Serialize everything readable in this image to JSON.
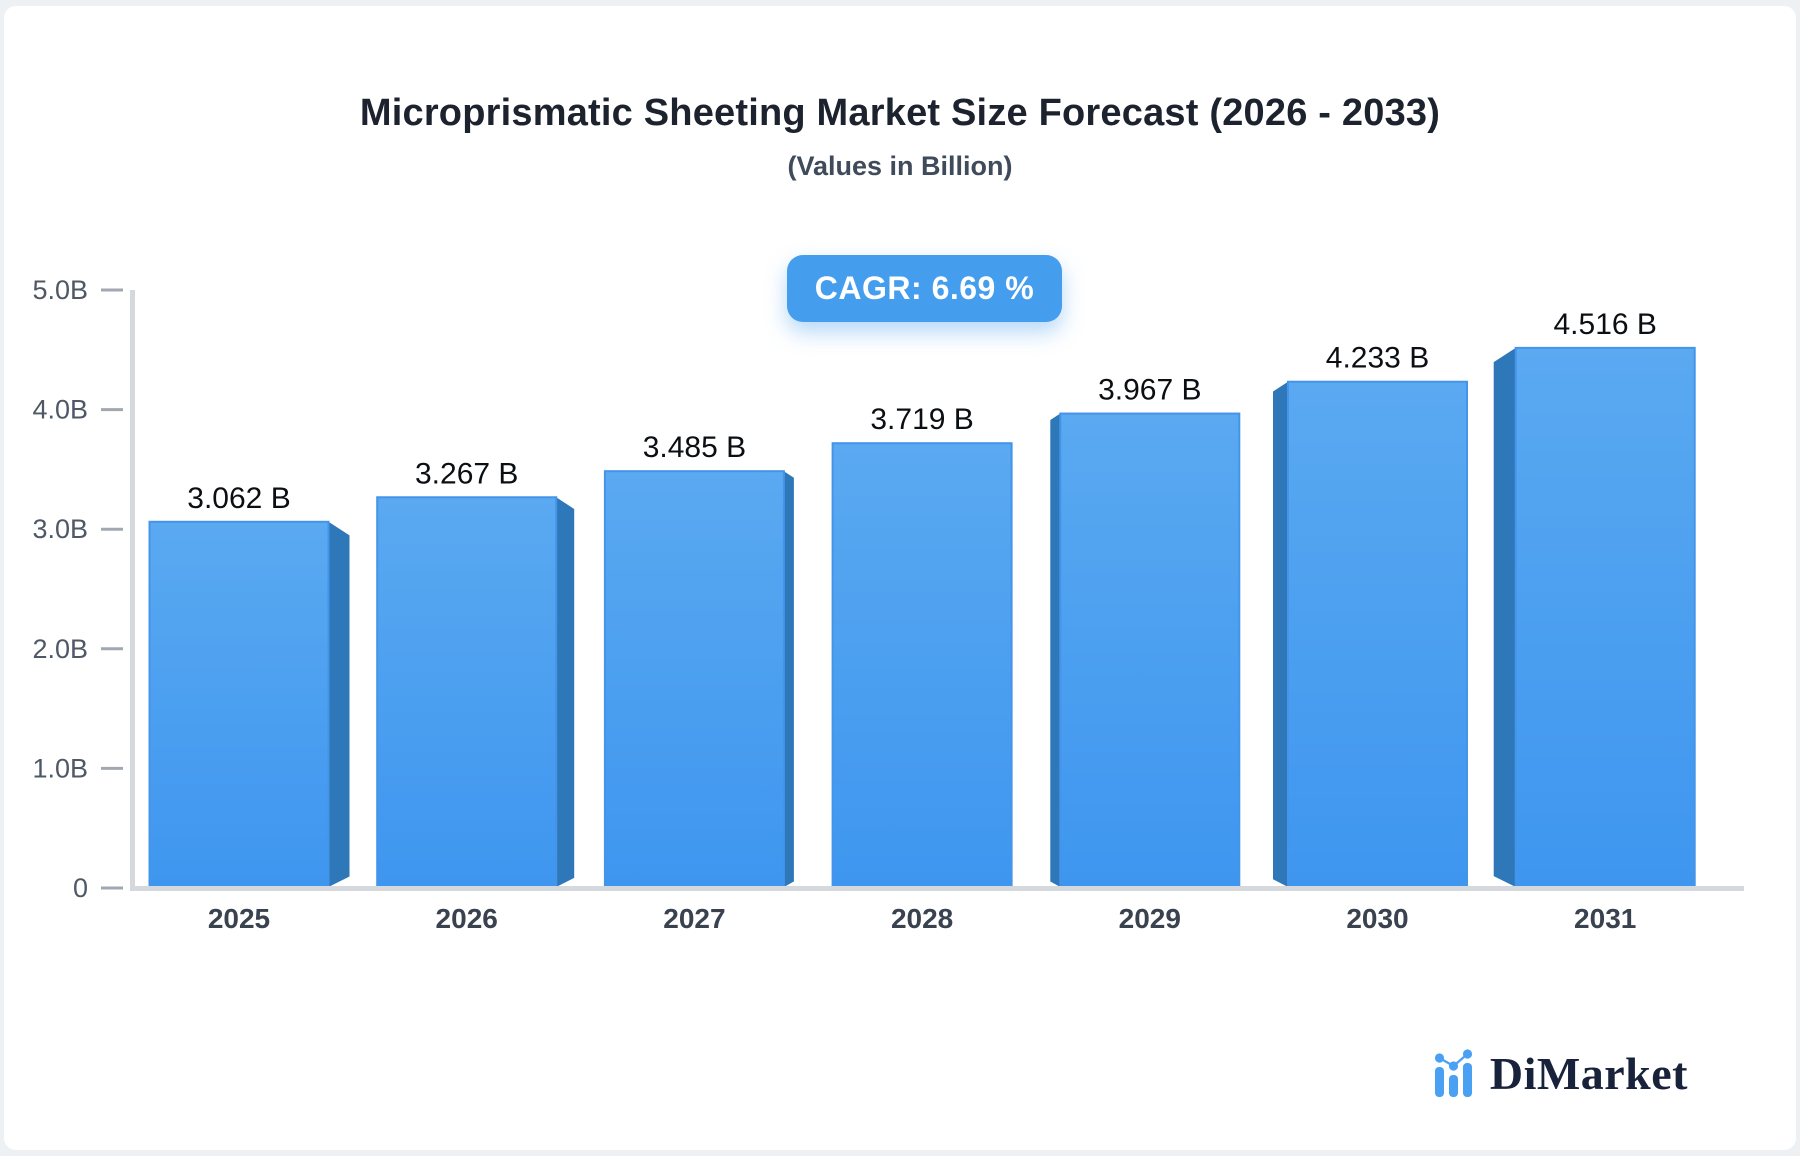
{
  "page": {
    "title": "Microprismatic Sheeting Market Size Forecast (2026 - 2033)",
    "subtitle": "(Values in Billion)",
    "cagr_badge": "CAGR: 6.69 %",
    "logo_text": "DiMarket"
  },
  "chart_data": {
    "type": "bar",
    "title": "Microprismatic Sheeting Market Size Forecast (2026 - 2033)",
    "subtitle": "(Values in Billion)",
    "cagr": "6.69 %",
    "categories": [
      "2025",
      "2026",
      "2027",
      "2028",
      "2029",
      "2030",
      "2031"
    ],
    "values": [
      3.062,
      3.267,
      3.485,
      3.719,
      3.967,
      4.233,
      4.516
    ],
    "value_labels": [
      "3.062 B",
      "3.267 B",
      "3.485 B",
      "3.719 B",
      "3.967 B",
      "4.233 B",
      "4.516 B"
    ],
    "y_tick_labels": [
      "0",
      "1.0B",
      "2.0B",
      "3.0B",
      "4.0B",
      "5.0B"
    ],
    "y_tick_values": [
      0,
      1,
      2,
      3,
      4,
      5
    ],
    "ylim": [
      0,
      5
    ],
    "xlabel": "",
    "ylabel": "",
    "grid": false,
    "legend": false,
    "colors": {
      "bar_top": "#5aa9f1",
      "bar_bottom": "#3e96ef",
      "bar_stroke": "#4494ea",
      "bar_side": "#2e78ba",
      "axis_line": "#d5d8dc",
      "tick_mark": "#a2a8b1",
      "y_label": "#4e5866",
      "x_label": "#39424e",
      "value_label": "#0b0e12",
      "badge": "#459ded",
      "logo_blue": "#4aa0f2"
    }
  }
}
